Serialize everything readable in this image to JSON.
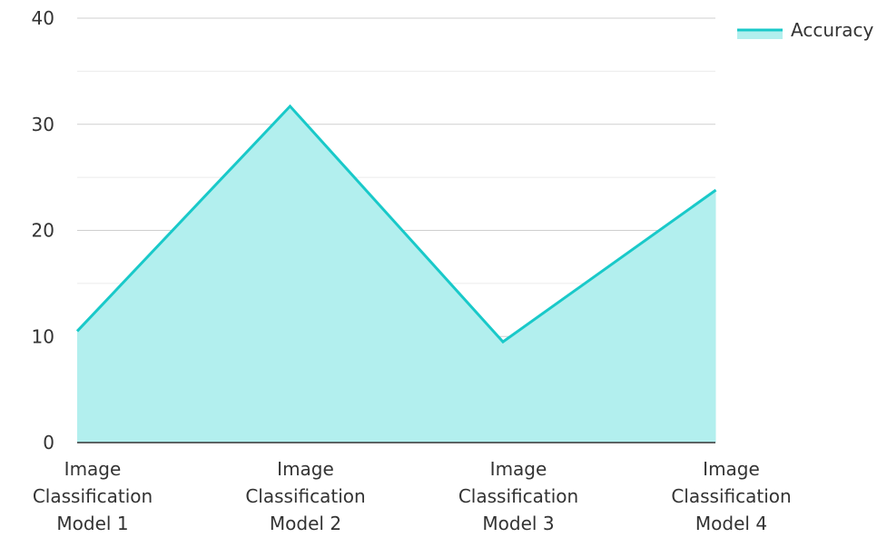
{
  "chart_data": {
    "type": "area",
    "title": "",
    "xlabel": "",
    "ylabel": "",
    "categories": [
      [
        "Image",
        "Classification",
        "Model 1"
      ],
      [
        "Image",
        "Classification",
        "Model 2"
      ],
      [
        "Image",
        "Classification",
        "Model 3"
      ],
      [
        "Image",
        "Classification",
        "Model 4"
      ]
    ],
    "y_ticks": [
      "0",
      "10",
      "20",
      "30",
      "40"
    ],
    "ylim": [
      0,
      40
    ],
    "grid": true,
    "legend_position": "top-right",
    "series": [
      {
        "name": "Accuracy",
        "values": [
          10.5,
          31.7,
          9.5,
          23.8
        ],
        "line_color": "#19c9c9",
        "fill_color": "#b2efee"
      }
    ]
  }
}
